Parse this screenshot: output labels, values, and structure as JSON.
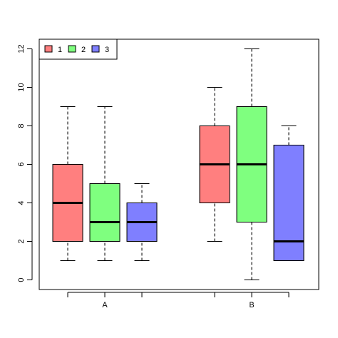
{
  "chart_data": {
    "type": "boxplot",
    "title": "",
    "xlabel": "",
    "ylabel": "",
    "ylim": [
      -0.5,
      12.5
    ],
    "yticks": [
      0,
      2,
      4,
      6,
      8,
      10,
      12
    ],
    "categories": [
      "A",
      "B"
    ],
    "legend": {
      "placement": "top-left",
      "entries": [
        "1",
        "2",
        "3"
      ]
    },
    "grid": false,
    "series": [
      {
        "name": "1",
        "color": "#ff7f7f",
        "boxes": [
          {
            "category": "A",
            "min": 1,
            "q1": 2,
            "median": 4,
            "q3": 6,
            "max": 9
          },
          {
            "category": "B",
            "min": 2,
            "q1": 4,
            "median": 6,
            "q3": 8,
            "max": 10
          }
        ]
      },
      {
        "name": "2",
        "color": "#7fff7f",
        "boxes": [
          {
            "category": "A",
            "min": 1,
            "q1": 2,
            "median": 3,
            "q3": 5,
            "max": 9
          },
          {
            "category": "B",
            "min": 0,
            "q1": 3,
            "median": 6,
            "q3": 9,
            "max": 12
          }
        ]
      },
      {
        "name": "3",
        "color": "#7f7fff",
        "boxes": [
          {
            "category": "A",
            "min": 1,
            "q1": 2,
            "median": 3,
            "q3": 4,
            "max": 5
          },
          {
            "category": "B",
            "min": 1,
            "q1": 1,
            "median": 2,
            "q3": 7,
            "max": 8
          }
        ]
      }
    ]
  }
}
